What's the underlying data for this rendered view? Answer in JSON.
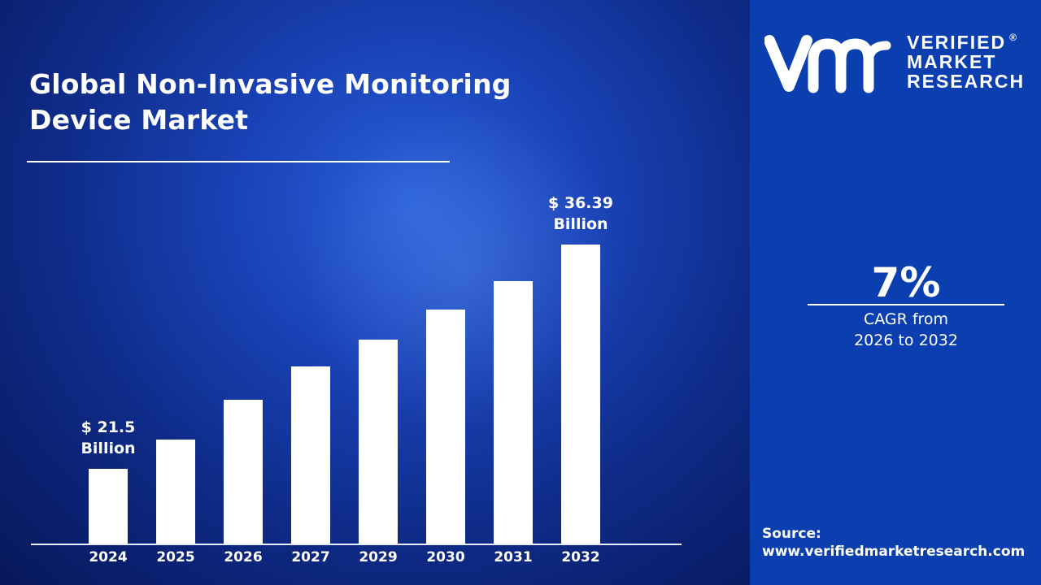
{
  "title": {
    "line1": "Global Non-Invasive Monitoring",
    "line2": "Device Market"
  },
  "brand": {
    "logo_mark": "vmr",
    "line1": "VERIFIED",
    "line2": "MARKET",
    "line3": "RESEARCH",
    "registered": "®"
  },
  "cagr": {
    "value": "7%",
    "line1": "CAGR from",
    "line2": "2026 to 2032"
  },
  "source": {
    "label": "Source:",
    "url": "www.verifiedmarketresearch.com"
  },
  "colors": {
    "background": "#0f2c8a",
    "sidebar": "#0b3fb0",
    "bars": "#ffffff",
    "text": "#ffffff"
  },
  "chart_data": {
    "type": "bar",
    "title": "Global Non-Invasive Monitoring Device Market",
    "xlabel": "",
    "ylabel": "",
    "unit": "USD Billion",
    "categories": [
      "2024",
      "2025",
      "2026",
      "2027",
      "2029",
      "2030",
      "2031",
      "2032"
    ],
    "values": [
      21.5,
      23.45,
      26.09,
      28.3,
      30.08,
      32.08,
      33.97,
      36.39
    ],
    "data_labels": [
      {
        "category": "2024",
        "line1": "$ 21.5",
        "line2": "Billion"
      },
      {
        "category": "2032",
        "line1": "$ 36.39",
        "line2": "Billion"
      }
    ],
    "grid": false,
    "legend": "none"
  }
}
